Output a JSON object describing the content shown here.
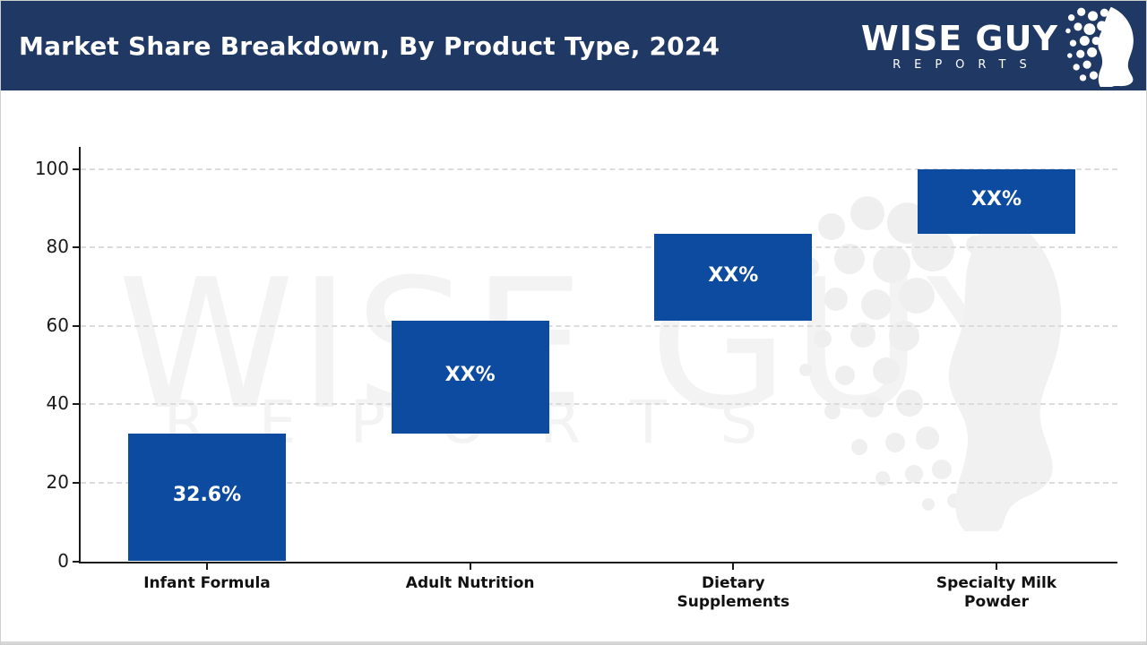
{
  "header": {
    "title": "Market Share Breakdown, By Product Type, 2024",
    "bg_color": "#203864",
    "logo": {
      "line1": "WISE GUY",
      "line2": "REPORTS"
    }
  },
  "watermark": {
    "line1": "WISE GUY",
    "line2": "REPORTS"
  },
  "chart_data": {
    "type": "bar",
    "variant": "waterfall",
    "title": "Market Share Breakdown, By Product Type, 2024",
    "categories": [
      "Infant Formula",
      "Adult Nutrition",
      "Dietary Supplements",
      "Specialty Milk Powder"
    ],
    "category_lines": [
      [
        "Infant Formula"
      ],
      [
        "Adult Nutrition"
      ],
      [
        "Dietary",
        "Supplements"
      ],
      [
        "Specialty Milk",
        "Powder"
      ]
    ],
    "segments": [
      {
        "category": "Infant Formula",
        "start": 0,
        "end": 32.6,
        "label": "32.6%"
      },
      {
        "category": "Adult Nutrition",
        "start": 32.6,
        "end": 61.3,
        "label": "XX%"
      },
      {
        "category": "Dietary Supplements",
        "start": 61.3,
        "end": 83.4,
        "label": "XX%"
      },
      {
        "category": "Specialty Milk Powder",
        "start": 83.4,
        "end": 100,
        "label": "XX%"
      }
    ],
    "yticks": [
      0,
      20,
      40,
      60,
      80,
      100
    ],
    "ylim": [
      0,
      105
    ],
    "bar_color": "#0c4ba0",
    "bar_label_color": "#ffffff",
    "axis_color": "#1a1a1a",
    "grid": {
      "horizontal": true,
      "style": "dashed",
      "color": "#dcdcdc"
    }
  }
}
